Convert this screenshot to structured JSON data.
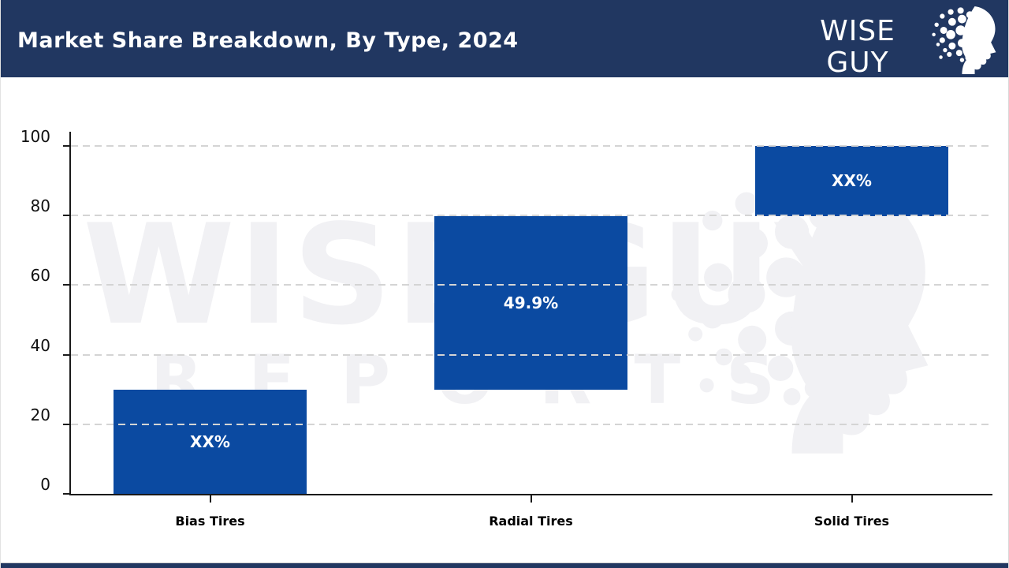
{
  "header": {
    "title": "Market Share Breakdown, By Type, 2024",
    "background_color": "#213761",
    "logo": {
      "wordmark": "WISE GUY",
      "sub": "REPORTS"
    }
  },
  "watermark": {
    "wordmark": "WISE GUY",
    "sub": "REPORTS"
  },
  "footer": {
    "background_color": "#213761"
  },
  "chart_data": {
    "type": "bar",
    "subtype": "floating-waterfall",
    "title": "Market Share Breakdown, By Type, 2024",
    "categories": [
      "Bias Tires",
      "Radial Tires",
      "Solid Tires"
    ],
    "series": [
      {
        "name": "Market share (%)",
        "values": [
          30,
          49.9,
          20.1
        ]
      }
    ],
    "bar_bases": [
      0,
      30,
      79.9
    ],
    "bar_value_labels": [
      "XX%",
      "49.9%",
      "XX%"
    ],
    "xlabel": "",
    "ylabel": "",
    "ylim": [
      0,
      104.5
    ],
    "yticks": [
      0,
      20,
      40,
      60,
      80,
      100
    ],
    "grid": {
      "orientation": "horizontal",
      "style": "dashed",
      "color": "#d4d4d4",
      "above_bars": true
    },
    "bar_color": "#0b4aa1",
    "axis_color": "#1a1a1a",
    "legend": null
  }
}
